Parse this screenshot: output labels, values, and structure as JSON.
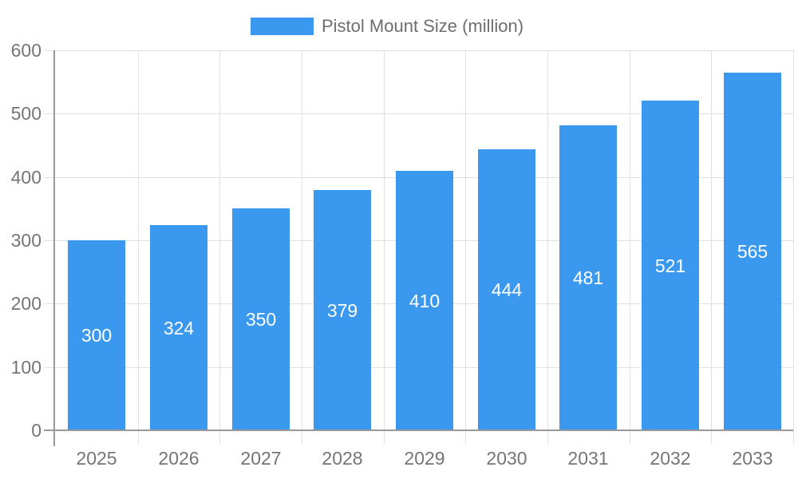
{
  "legend": {
    "label": "Pistol Mount Size (million)"
  },
  "chart_data": {
    "type": "bar",
    "title": "",
    "series_name": "Pistol Mount Size (million)",
    "categories": [
      "2025",
      "2026",
      "2027",
      "2028",
      "2029",
      "2030",
      "2031",
      "2032",
      "2033"
    ],
    "values": [
      300,
      324,
      350,
      379,
      410,
      444,
      481,
      521,
      565
    ],
    "xlabel": "",
    "ylabel": "",
    "ylim": [
      0,
      600
    ],
    "y_ticks": [
      0,
      100,
      200,
      300,
      400,
      500,
      600
    ],
    "y_tick_labels": [
      "0",
      "100",
      "200",
      "300",
      "400",
      "500",
      "600"
    ],
    "grid": true,
    "legend_position": "top-center",
    "value_labels": "inside-center-white",
    "colors": {
      "bar": "#3a99ee",
      "gridline": "#e0e0e0",
      "axis_line": "#999999",
      "tick_text": "#757575",
      "legend_text": "#6e6e6e",
      "value_text": "#ffffff",
      "background": "#ffffff"
    }
  }
}
